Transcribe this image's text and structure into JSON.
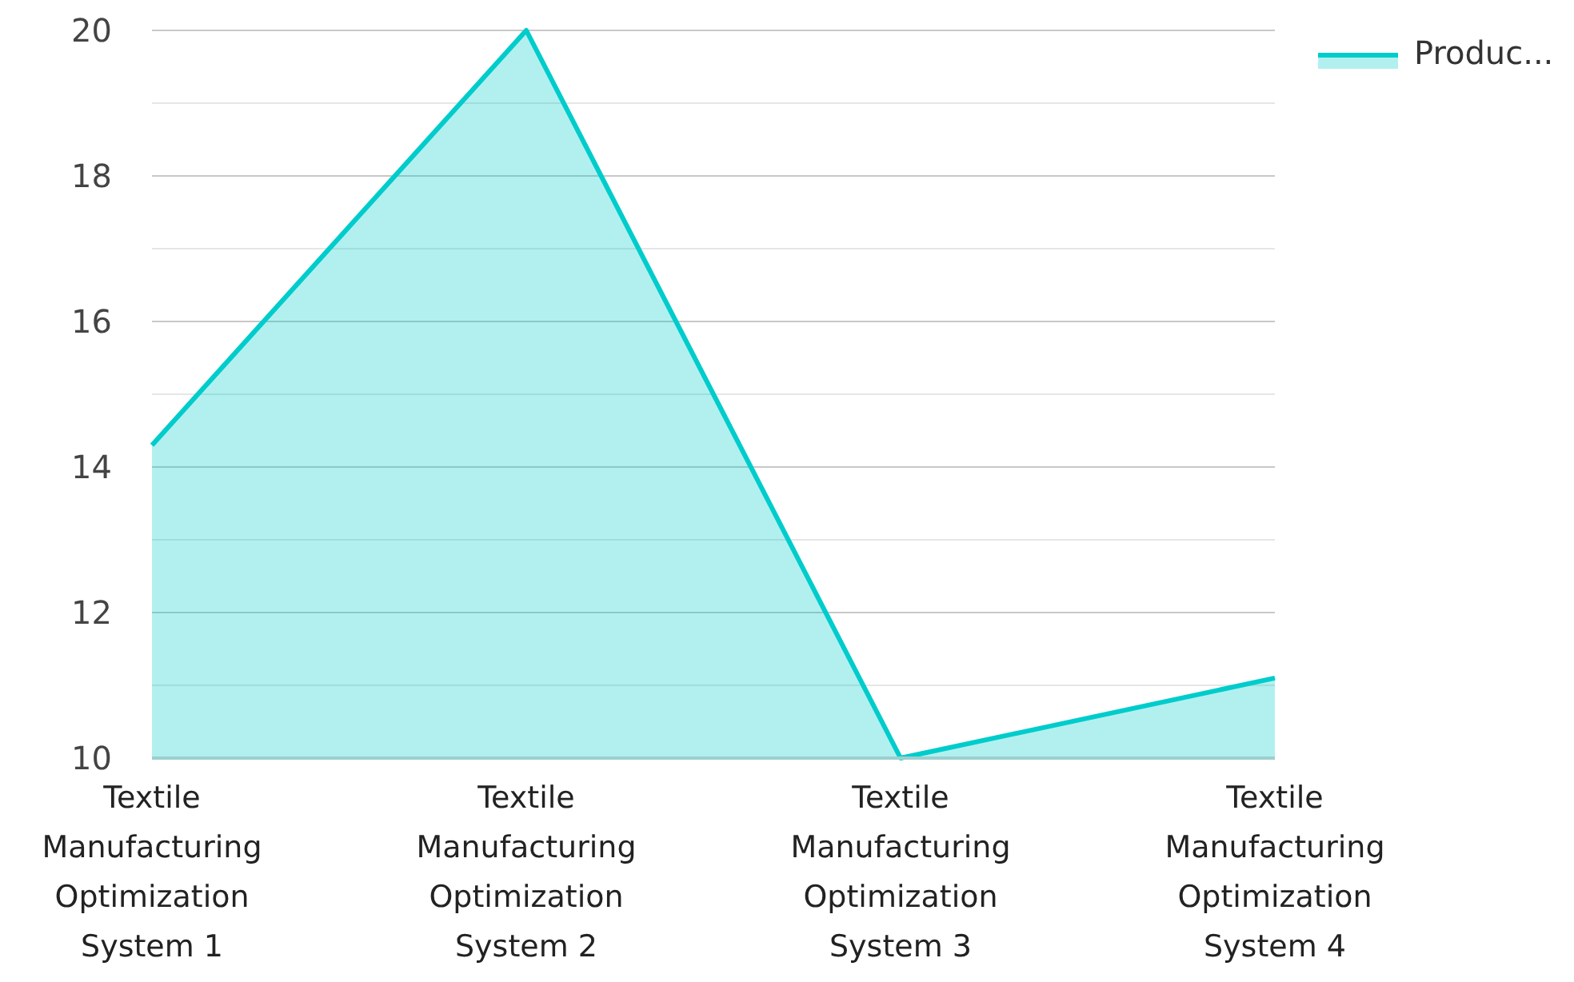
{
  "chart_data": {
    "type": "area",
    "categories": [
      "Textile Manufacturing Optimization System 1",
      "Textile Manufacturing Optimization System 2",
      "Textile Manufacturing Optimization System 3",
      "Textile Manufacturing Optimization System 4"
    ],
    "series": [
      {
        "name": "Produc...",
        "color": "#00cccc",
        "values": [
          14.3,
          20,
          10,
          11.1
        ]
      }
    ],
    "ylim": [
      10,
      20
    ],
    "yticks": [
      10,
      {
        "value": 11,
        "label": null
      },
      12,
      {
        "value": 13,
        "label": null
      },
      14,
      {
        "value": 15,
        "label": null
      },
      16,
      {
        "value": 17,
        "label": null
      },
      18,
      {
        "value": 19,
        "label": null
      },
      20
    ],
    "grid": "y",
    "legend": "top right"
  }
}
